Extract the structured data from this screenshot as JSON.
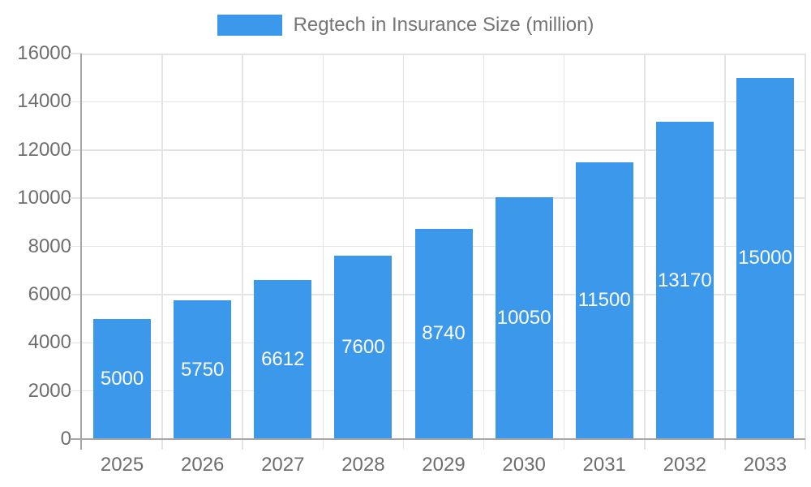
{
  "legend": {
    "label": "Regtech in Insurance Size (million)"
  },
  "colors": {
    "bar": "#3B98EB",
    "bar_label_text": "#FFFFFF",
    "grid_line": "#E4E4E4",
    "axis_line": "#A6A6A6",
    "axis_text": "#6E6E6E",
    "legend_text": "#757575",
    "background": "#FFFFFF"
  },
  "chart_data": {
    "type": "bar",
    "title": "Regtech in Insurance Size (million)",
    "categories": [
      "2025",
      "2026",
      "2027",
      "2028",
      "2029",
      "2030",
      "2031",
      "2032",
      "2033"
    ],
    "values": [
      5000,
      5750,
      6612,
      7600,
      8740,
      10050,
      11500,
      13170,
      15000
    ],
    "value_labels": [
      "5000",
      "5750",
      "6612",
      "7600",
      "8740",
      "10050",
      "11500",
      "13170",
      "15000"
    ],
    "xlabel": "",
    "ylabel": "",
    "ylim": [
      0,
      16000
    ],
    "yticks": [
      0,
      2000,
      4000,
      6000,
      8000,
      10000,
      12000,
      14000,
      16000
    ],
    "grid": true,
    "legend_position": "top-center",
    "value_label_position": "inside-center"
  }
}
